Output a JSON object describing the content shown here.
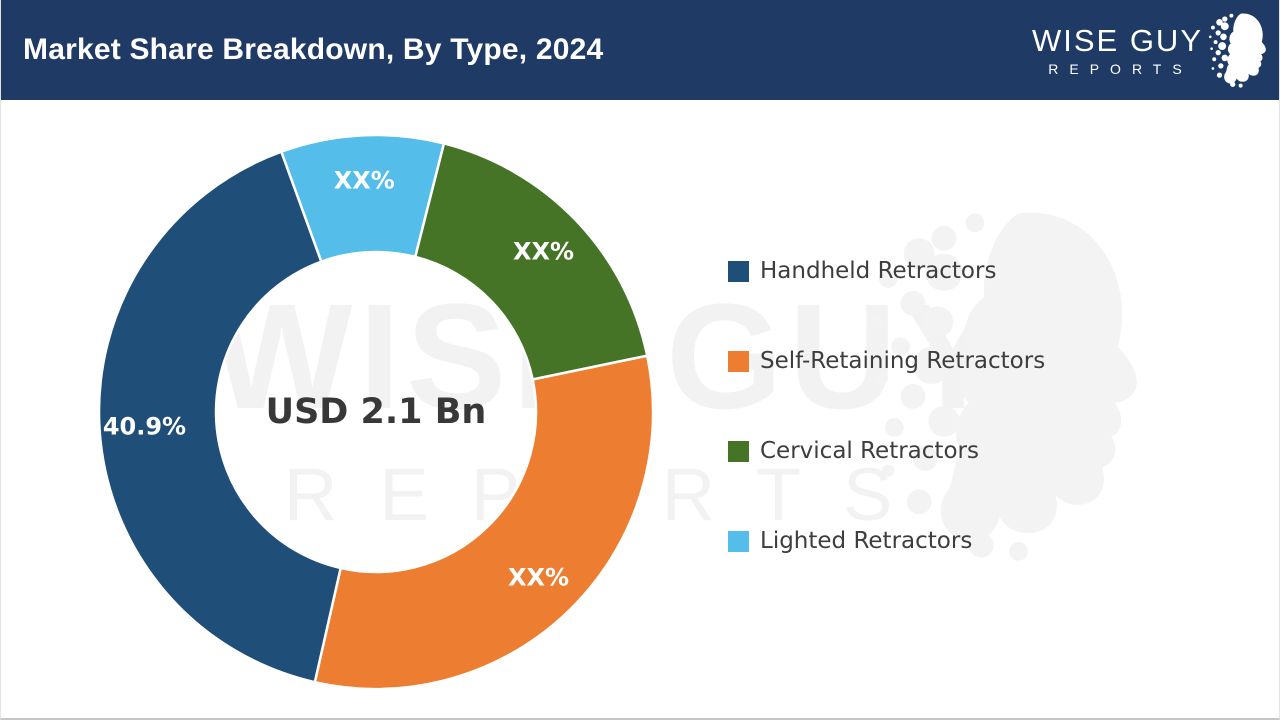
{
  "header": {
    "bg_color": "#203a66",
    "title": "Market Share Breakdown, By Type, 2024",
    "logo": {
      "line1": "WISE GUY",
      "line2": "REPORTS",
      "icon": "dotted-face-profile-icon"
    }
  },
  "watermark": {
    "line1": "WISE GUY",
    "line2": "REPORTS",
    "icon": "dotted-face-profile-icon"
  },
  "chart_data": {
    "type": "pie",
    "variant": "donut",
    "title": "Market Share Breakdown, By Type, 2024",
    "center_label": "USD 2.1 Bn",
    "legend_position": "right",
    "start_angle_deg": -20,
    "outer_radius_px": 277,
    "inner_radius_px": 160,
    "label_radius_px": 232,
    "slice_border_color": "#ffffff",
    "series": [
      {
        "name": "Handheld Retractors",
        "value_pct": 40.9,
        "label": "40.9%",
        "color": "#1f4e79"
      },
      {
        "name": "Self-Retaining Retractors",
        "value_pct": 31.8,
        "label": "XX%",
        "color": "#ed7d31"
      },
      {
        "name": "Cervical Retractors",
        "value_pct": 17.8,
        "label": "XX%",
        "color": "#467427"
      },
      {
        "name": "Lighted Retractors",
        "value_pct": 9.5,
        "label": "XX%",
        "color": "#55bde9"
      }
    ],
    "draw_order_clockwise_from_start": [
      3,
      2,
      1,
      0
    ]
  }
}
